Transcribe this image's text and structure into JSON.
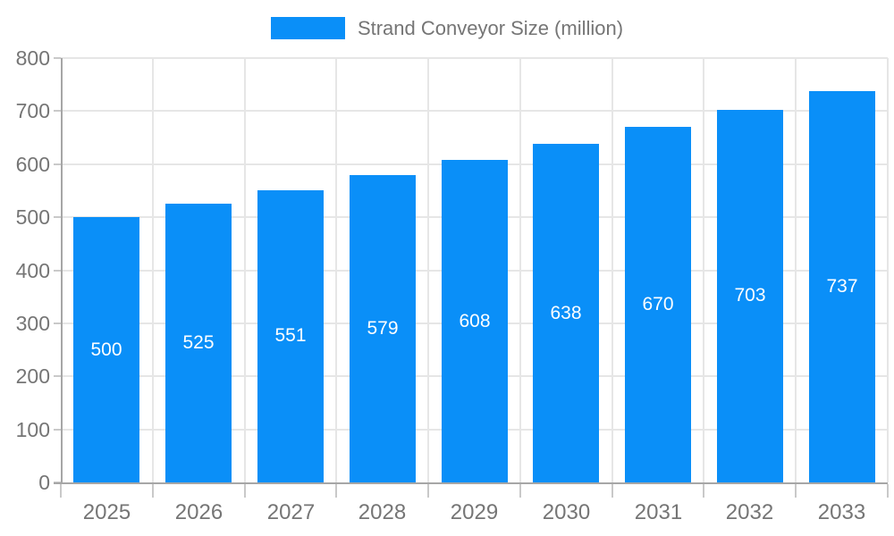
{
  "chart_data": {
    "type": "bar",
    "title": "Strand Conveyor Size (million)",
    "categories": [
      "2025",
      "2026",
      "2027",
      "2028",
      "2029",
      "2030",
      "2031",
      "2032",
      "2033"
    ],
    "values": [
      500,
      525,
      551,
      579,
      608,
      638,
      670,
      703,
      737
    ],
    "xlabel": "",
    "ylabel": "",
    "ylim": [
      0,
      800
    ],
    "ytick_step": 100,
    "grid": true,
    "legend_position": "top",
    "bar_labels_inside": true,
    "colors": {
      "bar": "#0a8ff8",
      "bar_label": "#ffffff",
      "tick_text": "#757575",
      "legend_text": "#757575",
      "gridline": "#e6e6e6",
      "tick_mark": "#c9c9c9",
      "axis_line": "#a6a6a6",
      "background": "#ffffff"
    }
  }
}
